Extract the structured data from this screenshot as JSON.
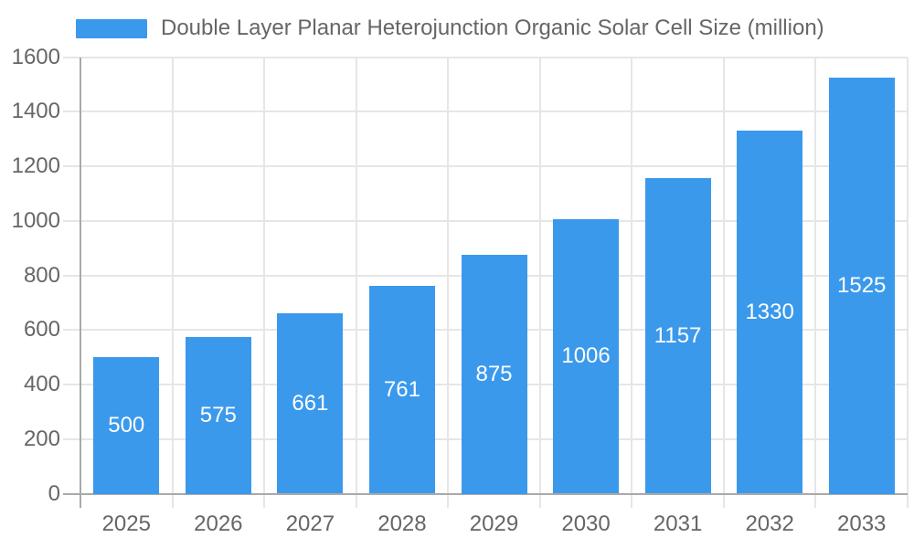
{
  "chart_data": {
    "type": "bar",
    "title": "Double Layer Planar Heterojunction Organic Solar Cell Size (million)",
    "categories": [
      "2025",
      "2026",
      "2027",
      "2028",
      "2029",
      "2030",
      "2031",
      "2032",
      "2033"
    ],
    "values": [
      500,
      575,
      661,
      761,
      875,
      1006,
      1157,
      1330,
      1525
    ],
    "xlabel": "",
    "ylabel": "",
    "ylim": [
      0,
      1600
    ],
    "yticks": [
      0,
      200,
      400,
      600,
      800,
      1000,
      1200,
      1400,
      1600
    ],
    "grid": true,
    "legend_position": "top-left",
    "value_labels": "inside-center",
    "colors": {
      "bar": "#3b99ec",
      "value_label": "#ffffff",
      "axis_text": "#666666",
      "grid_line": "#e6e6e6",
      "axis_line": "#a9a9a9"
    }
  }
}
